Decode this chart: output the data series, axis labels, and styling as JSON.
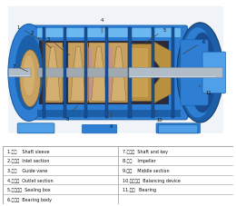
{
  "bg_color": "#f2f2f2",
  "pump_bg": "#ffffff",
  "left_labels": [
    "1.轴套    Shaft sleeve",
    "2.进入段  Inlet section",
    "3.导叶    Guide vane",
    "4.出入段  Outlet section",
    "5.密封盒体  Sealing box",
    "6.轴承体  Bearing body"
  ],
  "right_labels": [
    "7.轴和键  Shaft and key",
    "8.叶轮    Impeller",
    "9.中段    Middle section",
    "10.平衡装置  Balancing device",
    "11.轴承   Bearing"
  ],
  "label_arrows": [
    [
      1,
      0.07,
      0.82,
      0.19,
      0.7
    ],
    [
      2,
      0.13,
      0.78,
      0.22,
      0.66
    ],
    [
      3,
      0.2,
      0.74,
      0.3,
      0.61
    ],
    [
      4,
      0.43,
      0.87,
      0.43,
      0.76
    ],
    [
      5,
      0.7,
      0.8,
      0.61,
      0.7
    ],
    [
      6,
      0.87,
      0.72,
      0.77,
      0.62
    ],
    [
      7,
      0.05,
      0.55,
      0.12,
      0.5
    ],
    [
      8,
      0.28,
      0.18,
      0.33,
      0.28
    ],
    [
      9,
      0.47,
      0.13,
      0.47,
      0.24
    ],
    [
      10,
      0.68,
      0.17,
      0.64,
      0.28
    ],
    [
      11,
      0.89,
      0.36,
      0.84,
      0.42
    ]
  ]
}
